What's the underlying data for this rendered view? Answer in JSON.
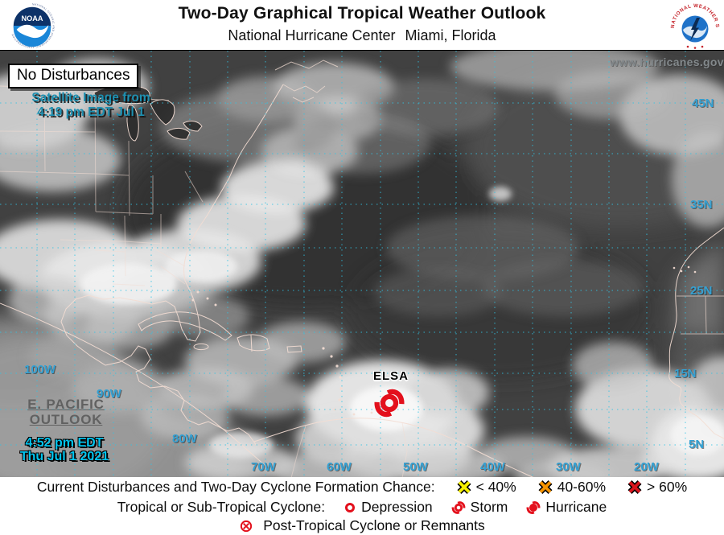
{
  "header": {
    "title": "Two-Day Graphical Tropical Weather Outlook",
    "subtitle_left": "National Hurricane Center",
    "subtitle_right": "Miami, Florida",
    "noaa_logo_text": "NOAA",
    "noaa_ring_text": "NATIONAL OCEANIC AND ATMOSPHERIC ADMINISTRATION",
    "nws_ring_text": "NATIONAL WEATHER SERVICE"
  },
  "map": {
    "no_disturbances": "No Disturbances",
    "satellite_line1": "Satellite Image from",
    "satellite_line2": "4:19 pm EDT Jul 1",
    "website": "www.hurricanes.gov",
    "storm_label": "ELSA",
    "pacific_line1": "E. PACIFIC",
    "pacific_line2": "OUTLOOK",
    "pacific_time_line1": "4:52 pm EDT",
    "pacific_time_line2": "Thu Jul 1 2021",
    "lat_labels": [
      "45N",
      "35N",
      "25N",
      "15N",
      "5N"
    ],
    "lon_labels_bottom": [
      "70W",
      "60W",
      "50W",
      "40W",
      "30W",
      "20W"
    ],
    "lon_labels_diag": [
      "100W",
      "90W",
      "80W"
    ]
  },
  "legend": {
    "row1_label": "Current Disturbances and Two-Day Cyclone Formation Chance:",
    "chances": [
      {
        "label": "< 40%",
        "color": "#f6f000"
      },
      {
        "label": "40-60%",
        "color": "#f79400"
      },
      {
        "label": "> 60%",
        "color": "#d9151c"
      }
    ],
    "row2_label": "Tropical or Sub-Tropical Cyclone:",
    "cyclone_types": [
      {
        "label": "Depression"
      },
      {
        "label": "Storm"
      },
      {
        "label": "Hurricane"
      }
    ],
    "row3_label": "Post-Tropical Cyclone or Remnants"
  },
  "colors": {
    "storm_red": "#e3101c",
    "coord_blue": "#35a1d3",
    "time_cyan": "#00c4ee",
    "attrib_teal": "#1d8fb0"
  }
}
